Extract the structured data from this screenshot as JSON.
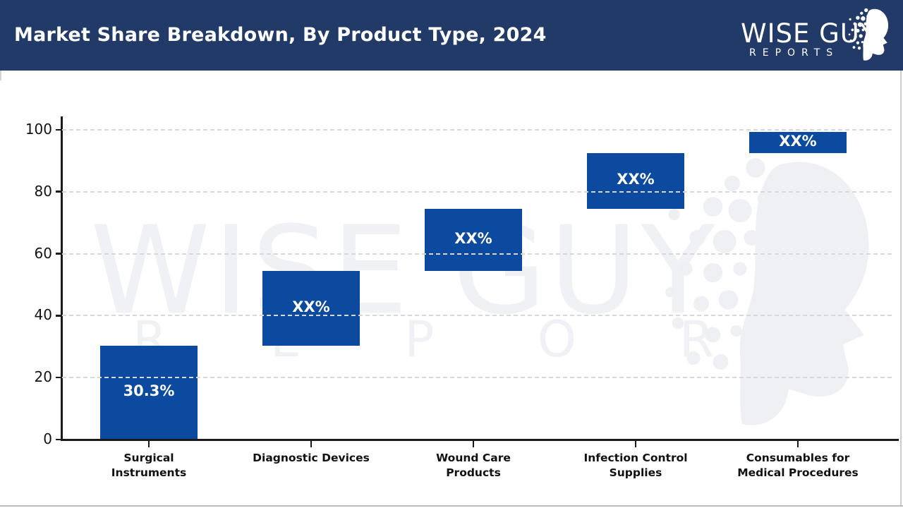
{
  "header": {
    "title": "Market Share Breakdown, By Product Type, 2024",
    "logo": {
      "name_line": "WISE GUY",
      "sub_line": "REPORTS"
    }
  },
  "watermark": {
    "name_line": "WISE GUY",
    "sub_line": "R E P O R T S",
    "face_icon": "dotted-head-profile"
  },
  "chart_data": {
    "type": "bar",
    "subtype": "waterfall",
    "title": "Market Share Breakdown, By Product Type, 2024",
    "categories": [
      "Surgical\nInstruments",
      "Diagnostic Devices",
      "Wound Care\nProducts",
      "Infection Control\nSupplies",
      "Consumables for\nMedical Procedures"
    ],
    "segments": [
      {
        "category": "Surgical Instruments",
        "start": 0,
        "end": 30.3,
        "label": "30.3%"
      },
      {
        "category": "Diagnostic Devices",
        "start": 30.3,
        "end": 54.5,
        "label": "XX%"
      },
      {
        "category": "Wound Care Products",
        "start": 54.5,
        "end": 74.5,
        "label": "XX%"
      },
      {
        "category": "Infection Control Supplies",
        "start": 74.5,
        "end": 92.5,
        "label": "XX%"
      },
      {
        "category": "Consumables for Medical Procedures",
        "start": 92.5,
        "end": 99.2,
        "label": "XX%"
      }
    ],
    "yticks": [
      0,
      20,
      40,
      60,
      80,
      100
    ],
    "ylim": [
      0,
      104.3
    ],
    "grid": true,
    "grid_style": "dashed",
    "legend": null,
    "bar_color": "#0c4aa0",
    "bar_label_color": "#ffffff",
    "grid_color": "#d7d8da",
    "axis_color": "#1a1a1a",
    "header_bg_color": "#213a67"
  }
}
